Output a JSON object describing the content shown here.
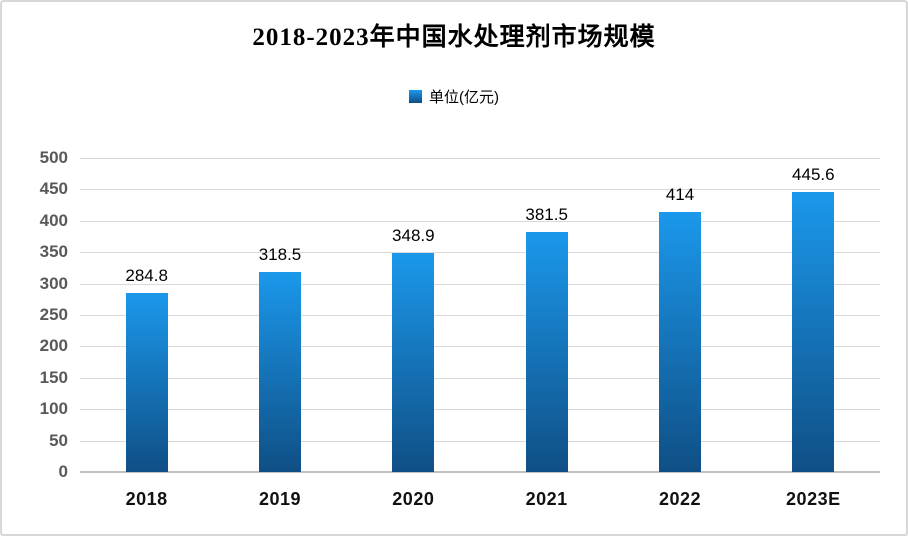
{
  "chart": {
    "title": "2018-2023年中国水处理剂市场规模",
    "legend_label": "单位(亿元)",
    "colors": {
      "bar_top": "#1b98eb",
      "bar_bottom": "#0f4f85",
      "legend_swatch_top": "#1b98eb",
      "legend_swatch_bottom": "#0f4f85",
      "grid": "#d9d9d9",
      "axis_line": "#bfbfbf",
      "y_tick_label": "#595959",
      "x_tick_label": "#111111",
      "data_label": "#000000",
      "frame_border": "#d8d8d8",
      "background": "#ffffff"
    }
  },
  "chart_data": {
    "type": "bar",
    "title": "2018-2023年中国水处理剂市场规模",
    "legend": [
      "单位(亿元)"
    ],
    "legend_position": "top",
    "categories": [
      "2018",
      "2019",
      "2020",
      "2021",
      "2022",
      "2023E"
    ],
    "values": [
      284.8,
      318.5,
      348.9,
      381.5,
      414,
      445.6
    ],
    "data_labels": [
      "284.8",
      "318.5",
      "348.9",
      "381.5",
      "414",
      "445.6"
    ],
    "xlabel": "",
    "ylabel": "",
    "ylim": [
      0,
      500
    ],
    "ytick_interval": 50,
    "yticks": [
      0,
      50,
      100,
      150,
      200,
      250,
      300,
      350,
      400,
      450,
      500
    ],
    "grid": true,
    "bar_fill": "vertical-gradient"
  }
}
